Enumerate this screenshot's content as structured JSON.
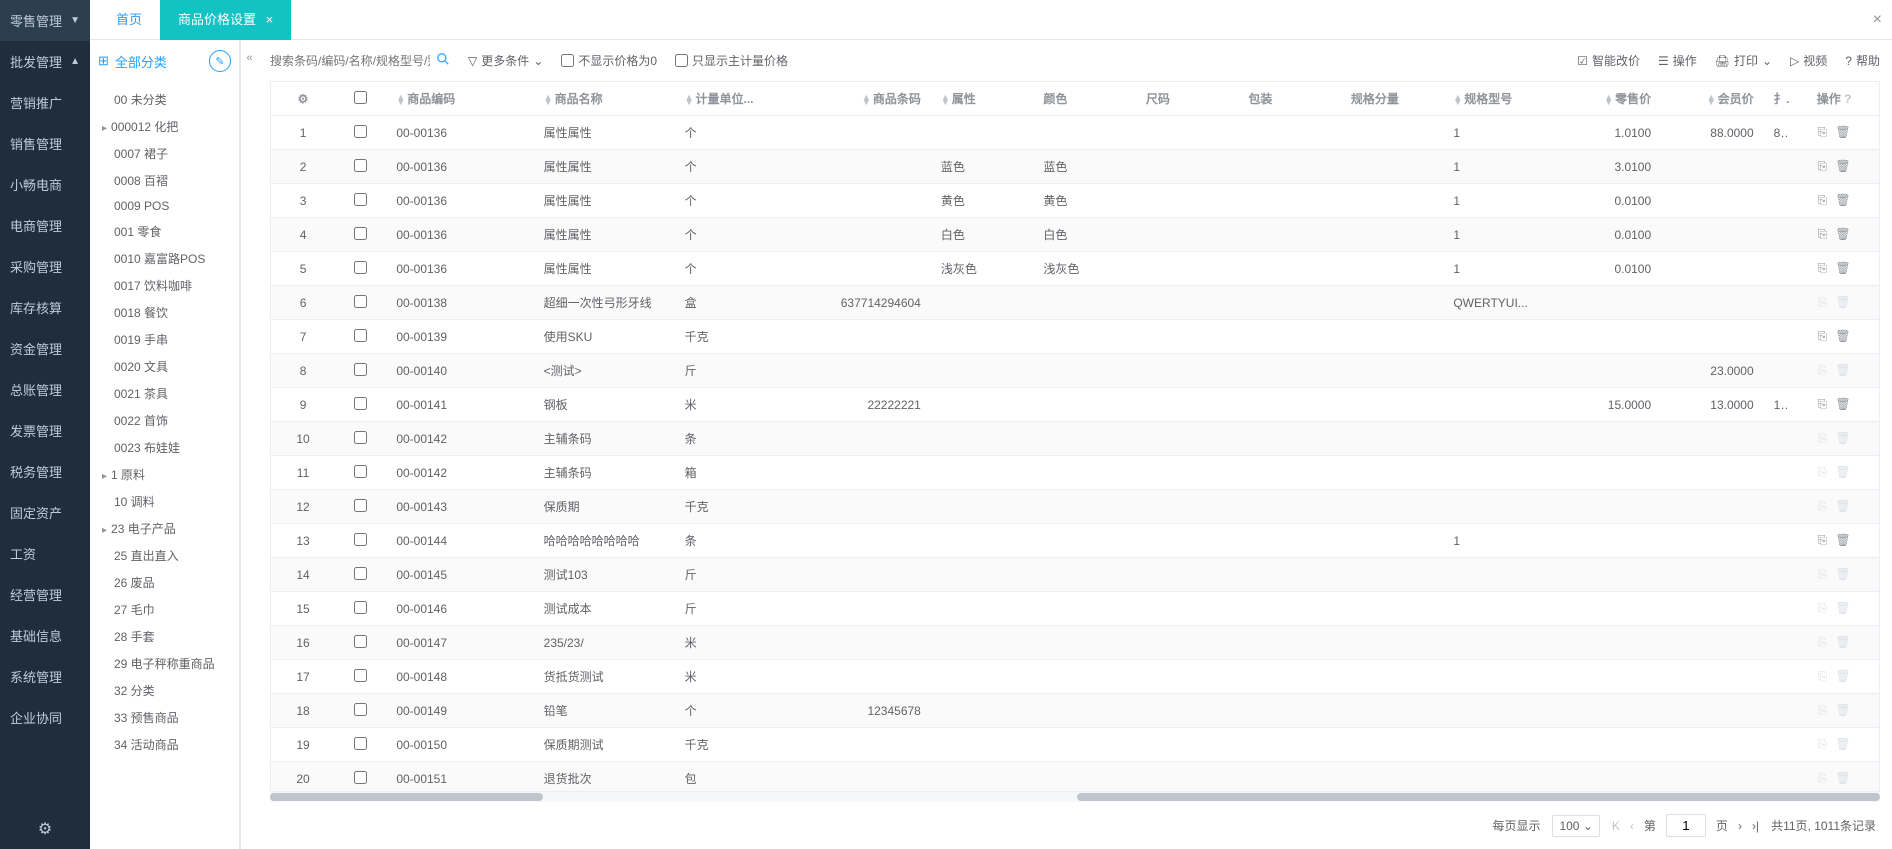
{
  "sidebar": {
    "items": [
      {
        "label": "零售管理",
        "caret": "▼"
      },
      {
        "label": "批发管理",
        "caret": "▲"
      },
      {
        "label": "营销推广"
      },
      {
        "label": "销售管理"
      },
      {
        "label": "小畅电商"
      },
      {
        "label": "电商管理"
      },
      {
        "label": "采购管理"
      },
      {
        "label": "库存核算"
      },
      {
        "label": "资金管理"
      },
      {
        "label": "总账管理"
      },
      {
        "label": "发票管理"
      },
      {
        "label": "税务管理"
      },
      {
        "label": "固定资产"
      },
      {
        "label": "工资"
      },
      {
        "label": "经营管理"
      },
      {
        "label": "基础信息"
      },
      {
        "label": "系统管理"
      },
      {
        "label": "企业协同"
      }
    ],
    "settings_icon": "⚙"
  },
  "tabs": {
    "home": "首页",
    "active": "商品价格设置",
    "close_glyph": "×",
    "close_all_glyph": "×"
  },
  "tree": {
    "header": "全部分类",
    "edit_icon": "✎",
    "collapse_icon": "«",
    "grid_icon": "⊞",
    "nodes": [
      {
        "label": "00 未分类"
      },
      {
        "label": "000012 化把",
        "expandable": true
      },
      {
        "label": "0007 裙子"
      },
      {
        "label": "0008 百褶"
      },
      {
        "label": "0009 POS"
      },
      {
        "label": "001 零食"
      },
      {
        "label": "0010 嘉富路POS"
      },
      {
        "label": "0017 饮料咖啡"
      },
      {
        "label": "0018 餐饮"
      },
      {
        "label": "0019 手串"
      },
      {
        "label": "0020 文具"
      },
      {
        "label": "0021 茶具"
      },
      {
        "label": "0022 首饰"
      },
      {
        "label": "0023 布娃娃"
      },
      {
        "label": "1 原料",
        "expandable": true
      },
      {
        "label": "10 调料"
      },
      {
        "label": "23 电子产品",
        "expandable": true
      },
      {
        "label": "25 直出直入"
      },
      {
        "label": "26 废品"
      },
      {
        "label": "27 毛巾"
      },
      {
        "label": "28 手套"
      },
      {
        "label": "29 电子秤称重商品"
      },
      {
        "label": "32 分类"
      },
      {
        "label": "33 预售商品"
      },
      {
        "label": "34 活动商品"
      }
    ]
  },
  "toolbar": {
    "search_placeholder": "搜索条码/编码/名称/规格型号/别名",
    "search_icon": "🔍",
    "more_filter": "更多条件",
    "filter_icon": "▽",
    "more_filter_caret": "⌄",
    "chk_hide_zero": "不显示价格为0",
    "chk_main_unit": "只显示主计量价格",
    "smart_edit": "智能改价",
    "smart_edit_icon": "☑",
    "operate": "操作",
    "operate_icon": "☰",
    "print": "打印",
    "print_icon": "🖨",
    "print_caret": "⌄",
    "video": "视频",
    "video_icon": "▷",
    "help": "帮助",
    "help_icon": "?"
  },
  "table": {
    "gear_icon": "⚙",
    "help_icon": "?",
    "columns": {
      "code": "商品编码",
      "name": "商品名称",
      "unit": "计量单位...",
      "barcode": "商品条码",
      "attr": "属性",
      "color": "颜色",
      "size": "尺码",
      "pack": "包装",
      "spec_weight": "规格分量",
      "spec_model": "规格型号",
      "retail": "零售价",
      "member": "会员价",
      "extra": "扌",
      "action": "操作"
    },
    "rows": [
      {
        "idx": 1,
        "code": "00-00136",
        "name": "属性属性",
        "unit": "个",
        "barcode": "",
        "attr": "",
        "color": "",
        "spec_model": "1",
        "retail": "1.0100",
        "member": "88.0000",
        "extra": "8",
        "enabled": true
      },
      {
        "idx": 2,
        "code": "00-00136",
        "name": "属性属性",
        "unit": "个",
        "barcode": "",
        "attr": "蓝色",
        "color": "蓝色",
        "spec_model": "1",
        "retail": "3.0100",
        "member": "",
        "enabled": true
      },
      {
        "idx": 3,
        "code": "00-00136",
        "name": "属性属性",
        "unit": "个",
        "barcode": "",
        "attr": "黄色",
        "color": "黄色",
        "spec_model": "1",
        "retail": "0.0100",
        "member": "",
        "enabled": true
      },
      {
        "idx": 4,
        "code": "00-00136",
        "name": "属性属性",
        "unit": "个",
        "barcode": "",
        "attr": "白色",
        "color": "白色",
        "spec_model": "1",
        "retail": "0.0100",
        "member": "",
        "enabled": true
      },
      {
        "idx": 5,
        "code": "00-00136",
        "name": "属性属性",
        "unit": "个",
        "barcode": "",
        "attr": "浅灰色",
        "color": "浅灰色",
        "spec_model": "1",
        "retail": "0.0100",
        "member": "",
        "enabled": true
      },
      {
        "idx": 6,
        "code": "00-00138",
        "name": "超细一次性弓形牙线",
        "unit": "盒",
        "barcode": "637714294604",
        "attr": "",
        "color": "",
        "spec_model": "QWERTYUI...",
        "retail": "",
        "member": "",
        "enabled": false
      },
      {
        "idx": 7,
        "code": "00-00139",
        "name": "使用SKU",
        "unit": "千克",
        "barcode": "",
        "attr": "",
        "color": "",
        "spec_model": "",
        "retail": "",
        "member": "",
        "enabled": true
      },
      {
        "idx": 8,
        "code": "00-00140",
        "name": "<测试>",
        "unit": "斤",
        "barcode": "",
        "attr": "",
        "color": "",
        "spec_model": "",
        "retail": "",
        "member": "23.0000",
        "enabled": false
      },
      {
        "idx": 9,
        "code": "00-00141",
        "name": "钢板",
        "unit": "米",
        "barcode": "22222221",
        "attr": "",
        "color": "",
        "spec_model": "",
        "retail": "15.0000",
        "member": "13.0000",
        "extra": "1",
        "enabled": true
      },
      {
        "idx": 10,
        "code": "00-00142",
        "name": "主辅条码",
        "unit": "条",
        "barcode": "",
        "attr": "",
        "color": "",
        "spec_model": "",
        "retail": "",
        "member": "",
        "enabled": false
      },
      {
        "idx": 11,
        "code": "00-00142",
        "name": "主辅条码",
        "unit": "箱",
        "barcode": "",
        "attr": "",
        "color": "",
        "spec_model": "",
        "retail": "",
        "member": "",
        "enabled": false
      },
      {
        "idx": 12,
        "code": "00-00143",
        "name": "保质期",
        "unit": "千克",
        "barcode": "",
        "attr": "",
        "color": "",
        "spec_model": "",
        "retail": "",
        "member": "",
        "enabled": false
      },
      {
        "idx": 13,
        "code": "00-00144",
        "name": "哈哈哈哈哈哈哈哈",
        "unit": "条",
        "barcode": "",
        "attr": "",
        "color": "",
        "spec_model": "1",
        "retail": "",
        "member": "",
        "enabled": true
      },
      {
        "idx": 14,
        "code": "00-00145",
        "name": "测试103",
        "unit": "斤",
        "barcode": "",
        "attr": "",
        "color": "",
        "spec_model": "",
        "retail": "",
        "member": "",
        "enabled": false
      },
      {
        "idx": 15,
        "code": "00-00146",
        "name": "测试成本",
        "unit": "斤",
        "barcode": "",
        "attr": "",
        "color": "",
        "spec_model": "",
        "retail": "",
        "member": "",
        "enabled": false
      },
      {
        "idx": 16,
        "code": "00-00147",
        "name": "235/23/",
        "unit": "米",
        "barcode": "",
        "attr": "",
        "color": "",
        "spec_model": "",
        "retail": "",
        "member": "",
        "enabled": false
      },
      {
        "idx": 17,
        "code": "00-00148",
        "name": "货抵货测试",
        "unit": "米",
        "barcode": "",
        "attr": "",
        "color": "",
        "spec_model": "",
        "retail": "",
        "member": "",
        "enabled": false
      },
      {
        "idx": 18,
        "code": "00-00149",
        "name": "铅笔",
        "unit": "个",
        "barcode": "12345678",
        "attr": "",
        "color": "",
        "spec_model": "",
        "retail": "",
        "member": "",
        "enabled": false
      },
      {
        "idx": 19,
        "code": "00-00150",
        "name": "保质期测试",
        "unit": "千克",
        "barcode": "",
        "attr": "",
        "color": "",
        "spec_model": "",
        "retail": "",
        "member": "",
        "enabled": false
      },
      {
        "idx": 20,
        "code": "00-00151",
        "name": "退货批次",
        "unit": "包",
        "barcode": "",
        "attr": "",
        "color": "",
        "spec_model": "",
        "retail": "",
        "member": "",
        "enabled": false
      }
    ],
    "action_edit_icon": "⎘",
    "action_delete_icon": "🗑"
  },
  "pagination": {
    "per_page_label": "每页显示",
    "page_size": "100",
    "page_size_caret": "⌄",
    "first_icon": "K",
    "prev_icon": "‹",
    "page_label_prefix": "第",
    "current_page": "1",
    "page_label_suffix": "页",
    "next_icon": "›",
    "last_icon": "›|",
    "total_text": "共11页, 1011条记录"
  },
  "colors": {
    "sidebar_bg": "#1f2d3d",
    "accent": "#20a0ff",
    "active_tab_bg": "#13c2c2",
    "border": "#ebeef5",
    "text_muted": "#909399"
  }
}
